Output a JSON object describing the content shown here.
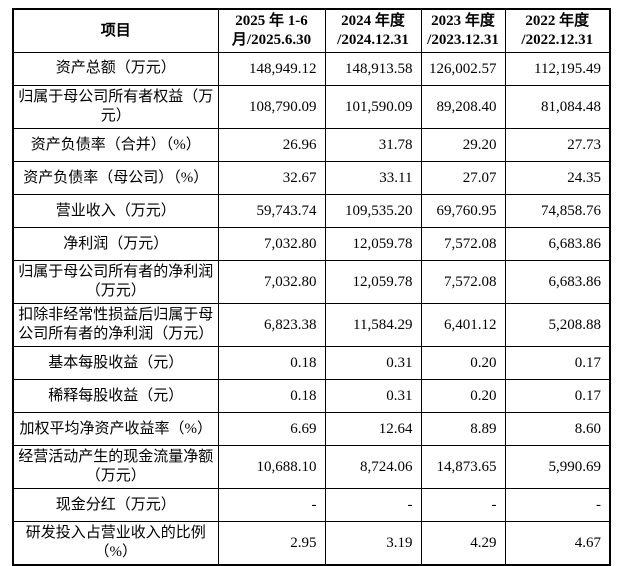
{
  "colors": {
    "background": "#ffffff",
    "text": "#000000",
    "border": "#000000"
  },
  "table": {
    "header": {
      "item_label": "项目",
      "periods": [
        {
          "line1": "2025 年 1-6",
          "line2": "月/2025.6.30"
        },
        {
          "line1": "2024 年度",
          "line2": "/2024.12.31"
        },
        {
          "line1": "2023 年度",
          "line2": "/2023.12.31"
        },
        {
          "line1": "2022 年度",
          "line2": "/2022.12.31"
        }
      ]
    },
    "rows": [
      {
        "label": "资产总额（万元）",
        "values": [
          "148,949.12",
          "148,913.58",
          "126,002.57",
          "112,195.49"
        ]
      },
      {
        "label": "归属于母公司所有者权益（万元）",
        "values": [
          "108,790.09",
          "101,590.09",
          "89,208.40",
          "81,084.48"
        ]
      },
      {
        "label": "资产负债率（合并）（%）",
        "values": [
          "26.96",
          "31.78",
          "29.20",
          "27.73"
        ]
      },
      {
        "label": "资产负债率（母公司）（%）",
        "values": [
          "32.67",
          "33.11",
          "27.07",
          "24.35"
        ]
      },
      {
        "label": "营业收入（万元）",
        "values": [
          "59,743.74",
          "109,535.20",
          "69,760.95",
          "74,858.76"
        ]
      },
      {
        "label": "净利润（万元）",
        "values": [
          "7,032.80",
          "12,059.78",
          "7,572.08",
          "6,683.86"
        ]
      },
      {
        "label": "归属于母公司所有者的净利润（万元）",
        "values": [
          "7,032.80",
          "12,059.78",
          "7,572.08",
          "6,683.86"
        ]
      },
      {
        "label": "扣除非经常性损益后归属于母公司所有者的净利润（万元）",
        "values": [
          "6,823.38",
          "11,584.29",
          "6,401.12",
          "5,208.88"
        ]
      },
      {
        "label": "基本每股收益（元）",
        "values": [
          "0.18",
          "0.31",
          "0.20",
          "0.17"
        ]
      },
      {
        "label": "稀释每股收益（元）",
        "values": [
          "0.18",
          "0.31",
          "0.20",
          "0.17"
        ]
      },
      {
        "label": "加权平均净资产收益率（%）",
        "values": [
          "6.69",
          "12.64",
          "8.89",
          "8.60"
        ]
      },
      {
        "label": "经营活动产生的现金流量净额（万元）",
        "values": [
          "10,688.10",
          "8,724.06",
          "14,873.65",
          "5,990.69"
        ]
      },
      {
        "label": "现金分红（万元）",
        "values": [
          "-",
          "-",
          "-",
          "-"
        ]
      },
      {
        "label": "研发投入占营业收入的比例（%）",
        "values": [
          "2.95",
          "3.19",
          "4.29",
          "4.67"
        ]
      }
    ]
  }
}
